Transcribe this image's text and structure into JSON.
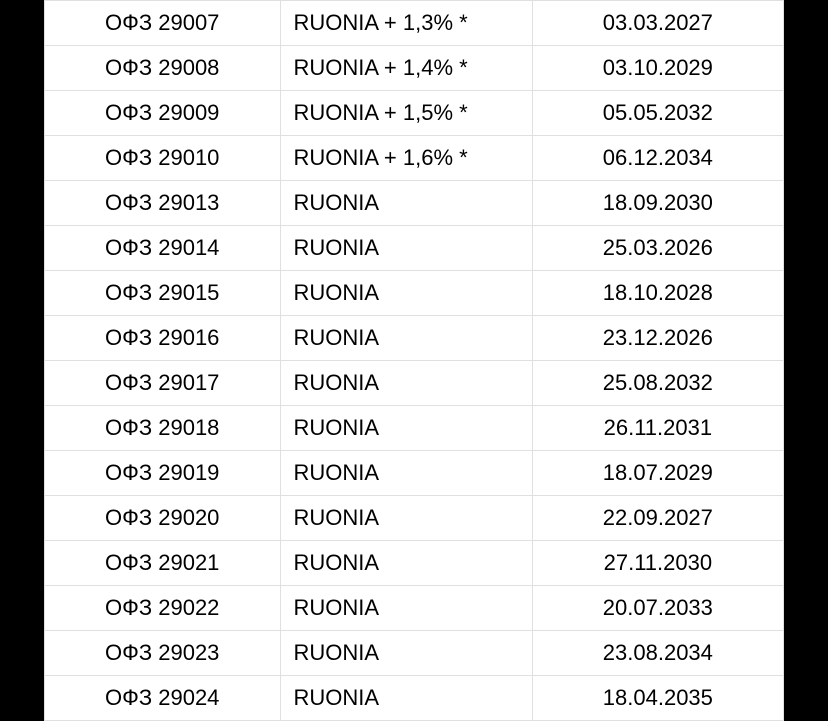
{
  "table": {
    "background_color": "#ffffff",
    "border_color": "#e0e0e0",
    "text_color": "#000000",
    "font_size": 22,
    "columns": [
      "name",
      "rate",
      "date"
    ],
    "rows": [
      {
        "name": "ОФЗ 29007",
        "rate": "RUONIA + 1,3% *",
        "date": "03.03.2027"
      },
      {
        "name": "ОФЗ 29008",
        "rate": "RUONIA + 1,4% *",
        "date": "03.10.2029"
      },
      {
        "name": "ОФЗ 29009",
        "rate": "RUONIA + 1,5% *",
        "date": "05.05.2032"
      },
      {
        "name": "ОФЗ 29010",
        "rate": "RUONIA + 1,6% *",
        "date": "06.12.2034"
      },
      {
        "name": "ОФЗ 29013",
        "rate": "RUONIA",
        "date": "18.09.2030"
      },
      {
        "name": "ОФЗ 29014",
        "rate": "RUONIA",
        "date": "25.03.2026"
      },
      {
        "name": "ОФЗ 29015",
        "rate": "RUONIA",
        "date": "18.10.2028"
      },
      {
        "name": "ОФЗ 29016",
        "rate": "RUONIA",
        "date": "23.12.2026"
      },
      {
        "name": "ОФЗ 29017",
        "rate": "RUONIA",
        "date": "25.08.2032"
      },
      {
        "name": "ОФЗ 29018",
        "rate": "RUONIA",
        "date": "26.11.2031"
      },
      {
        "name": "ОФЗ 29019",
        "rate": "RUONIA",
        "date": "18.07.2029"
      },
      {
        "name": "ОФЗ 29020",
        "rate": "RUONIA",
        "date": "22.09.2027"
      },
      {
        "name": "ОФЗ 29021",
        "rate": "RUONIA",
        "date": "27.11.2030"
      },
      {
        "name": "ОФЗ 29022",
        "rate": "RUONIA",
        "date": "20.07.2033"
      },
      {
        "name": "ОФЗ 29023",
        "rate": "RUONIA",
        "date": "23.08.2034"
      },
      {
        "name": "ОФЗ 29024",
        "rate": "RUONIA",
        "date": "18.04.2035"
      }
    ]
  }
}
